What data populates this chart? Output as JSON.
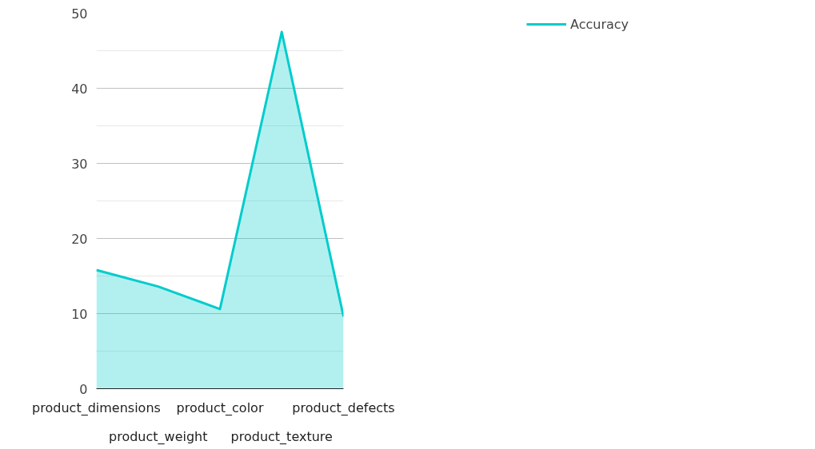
{
  "chart_data": {
    "type": "area",
    "categories": [
      "product_dimensions",
      "product_weight",
      "product_color",
      "product_texture",
      "product_defects"
    ],
    "series": [
      {
        "name": "Accuracy",
        "color": "#00cccc",
        "values": [
          15.8,
          13.6,
          10.6,
          47.5,
          9.6
        ]
      }
    ],
    "ylim": [
      0,
      50
    ],
    "yticks": [
      0,
      10,
      20,
      30,
      40,
      50
    ],
    "grid": "y",
    "legend": "top right"
  }
}
